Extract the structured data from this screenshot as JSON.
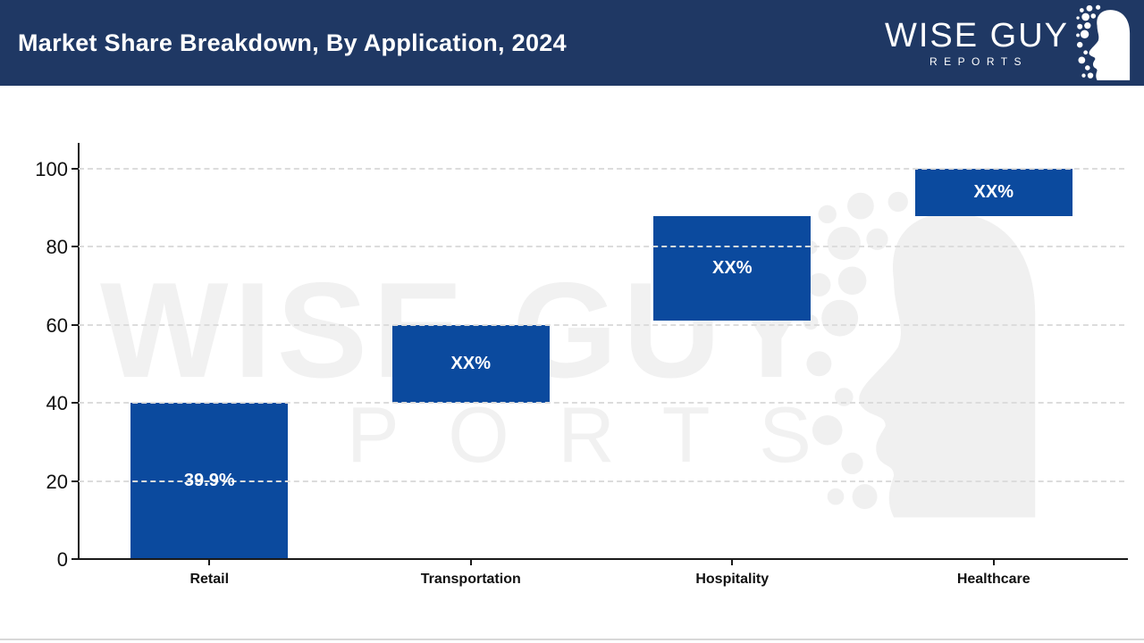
{
  "header": {
    "title": "Market Share Breakdown, By Application, 2024",
    "logo": {
      "line1": "WISE GUY",
      "line2": "REPORTS"
    }
  },
  "watermark": {
    "line1": "WISE GUY",
    "line2": "PORTS"
  },
  "chart_data": {
    "type": "bar",
    "subtype": "waterfall-segments",
    "title": "Market Share Breakdown, By Application, 2024",
    "categories": [
      "Retail",
      "Transportation",
      "Hospitality",
      "Healthcare"
    ],
    "segments": [
      {
        "category": "Retail",
        "start": 0,
        "end": 39.9,
        "label": "39.9%"
      },
      {
        "category": "Transportation",
        "start": 40,
        "end": 60,
        "label": "XX%"
      },
      {
        "category": "Hospitality",
        "start": 61,
        "end": 87.7,
        "label": "XX%"
      },
      {
        "category": "Healthcare",
        "start": 87.7,
        "end": 100,
        "label": "XX%"
      }
    ],
    "y_ticks": [
      0,
      20,
      40,
      60,
      80,
      100
    ],
    "ylim": [
      0,
      106
    ],
    "xlabel": "",
    "ylabel": "",
    "grid": "horizontal-dashed",
    "legend": "none"
  },
  "colors": {
    "header_bg": "#1f3864",
    "bar": "#0b4a9e",
    "grid": "#dcdcdc",
    "axis": "#1a1a1a",
    "bar_label": "#ffffff",
    "watermark": "#f1f1f1"
  }
}
